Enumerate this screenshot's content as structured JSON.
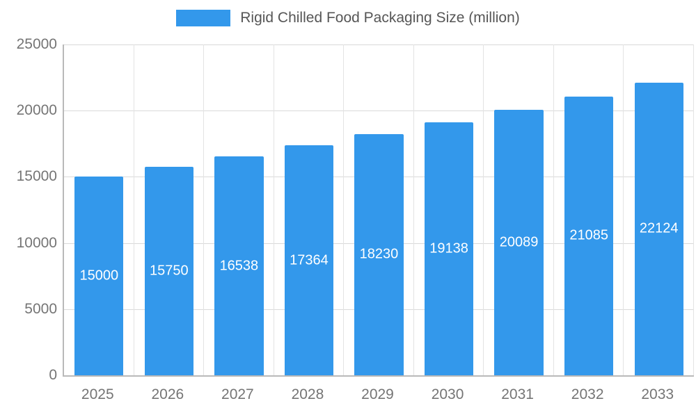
{
  "legend": {
    "label": "Rigid Chilled Food Packaging Size (million)",
    "swatch_color": "#3398EB"
  },
  "chart_data": {
    "type": "bar",
    "title": "Rigid Chilled Food Packaging Size (million)",
    "categories": [
      "2025",
      "2026",
      "2027",
      "2028",
      "2029",
      "2030",
      "2031",
      "2032",
      "2033"
    ],
    "values": [
      15000,
      15750,
      16538,
      17364,
      18230,
      19138,
      20089,
      21085,
      22124
    ],
    "series": [
      {
        "name": "Rigid Chilled Food Packaging Size (million)",
        "values": [
          15000,
          15750,
          16538,
          17364,
          18230,
          19138,
          20089,
          21085,
          22124
        ]
      }
    ],
    "xlabel": "",
    "ylabel": "",
    "ylim": [
      0,
      25000
    ],
    "yticks": [
      0,
      5000,
      10000,
      15000,
      20000,
      25000
    ],
    "grid": true,
    "legend_position": "top",
    "bar_color": "#3398EB",
    "data_label_color": "#ffffff",
    "axis_text_color": "#757575"
  }
}
